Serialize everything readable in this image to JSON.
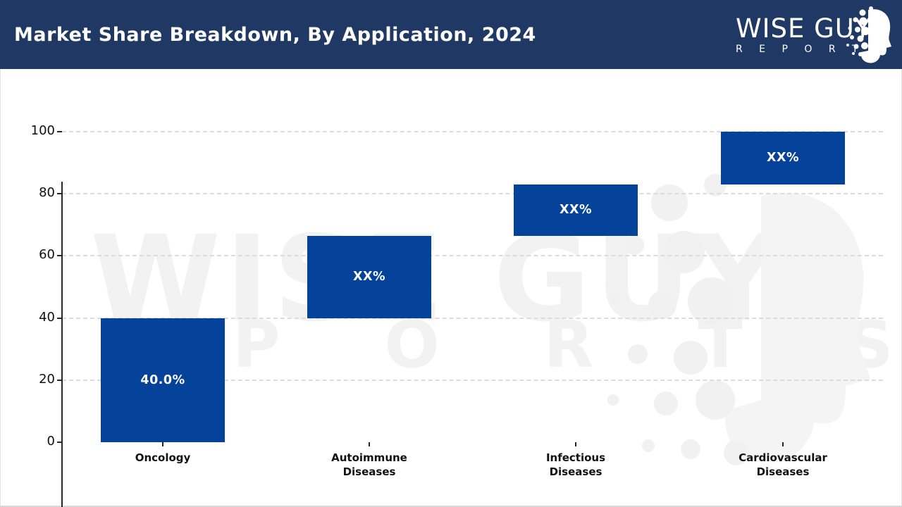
{
  "header": {
    "title": "Market Share Breakdown, By Application, 2024",
    "logo": {
      "line1": "WISE GUY",
      "line2": "R E P O R T S"
    }
  },
  "watermark": {
    "line1": "WISE GUY",
    "line2": "P O R T S"
  },
  "colors": {
    "header_bg": "#203864",
    "bar_blue": "#05439b",
    "axis": "#262626",
    "gridline": "#dcdcdc",
    "bar_label": "#ffffff",
    "watermark": "#f2f2f2"
  },
  "chart_data": {
    "type": "bar",
    "subtype": "waterfall",
    "title": "Market Share Breakdown, By Application, 2024",
    "categories": [
      "Oncology",
      "Autoimmune Diseases",
      "Infectious Diseases",
      "Cardiovascular Diseases"
    ],
    "segments": [
      {
        "category_lines": [
          "Oncology"
        ],
        "start": 0,
        "end": 40,
        "value": 40.0,
        "label": "40.0%"
      },
      {
        "category_lines": [
          "Autoimmune",
          "Diseases"
        ],
        "start": 40,
        "end": 66.5,
        "value": 26.5,
        "label": "XX%"
      },
      {
        "category_lines": [
          "Infectious",
          "Diseases"
        ],
        "start": 66.5,
        "end": 83,
        "value": 16.5,
        "label": "XX%"
      },
      {
        "category_lines": [
          "Cardiovascular",
          "Diseases"
        ],
        "start": 83,
        "end": 100,
        "value": 17.0,
        "label": "XX%"
      }
    ],
    "y_ticks": [
      0,
      20,
      40,
      60,
      80,
      100
    ],
    "ylim": [
      0,
      100
    ],
    "xlabel": "",
    "ylabel": "",
    "grid": "horizontal-dashed",
    "legend": "none",
    "bar_color": "#05439b",
    "label_color": "#ffffff"
  }
}
